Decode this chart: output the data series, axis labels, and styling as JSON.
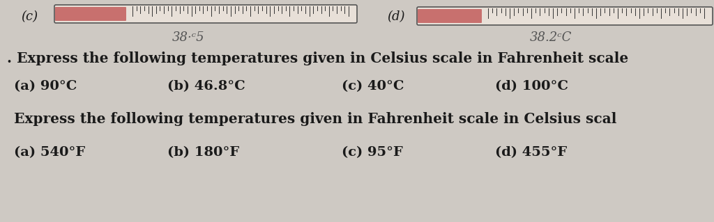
{
  "background_color": "#cec9c3",
  "top_label_c": "(c)",
  "top_label_d": "(d)",
  "top_value_c": "38·ᶜ5",
  "top_value_d": "38.2ᶜC",
  "question1_text": ". Express the following temperatures given in Celsius scale in Fahrenheit scale",
  "q1_items": [
    "(a) 90°C",
    "(b) 46.8°C",
    "(c) 40°C",
    "(d) 100°C"
  ],
  "question2_text": "Express the following temperatures given in Fahrenheit scale in Celsius scal",
  "q2_items": [
    "(a) 540°F",
    "(b) 180°F",
    "(c) 95°F",
    "(d) 455°F"
  ],
  "text_color": "#1a1a1a",
  "thermo_fill": "#c8706e",
  "thermo_tube": "#e8e0d8",
  "thermo_edge": "#555555",
  "tick_color": "#333333",
  "handwrite_color": "#555555",
  "font_size_question": 14.5,
  "font_size_items": 14,
  "font_size_top_label": 13,
  "font_size_handwrite": 13
}
